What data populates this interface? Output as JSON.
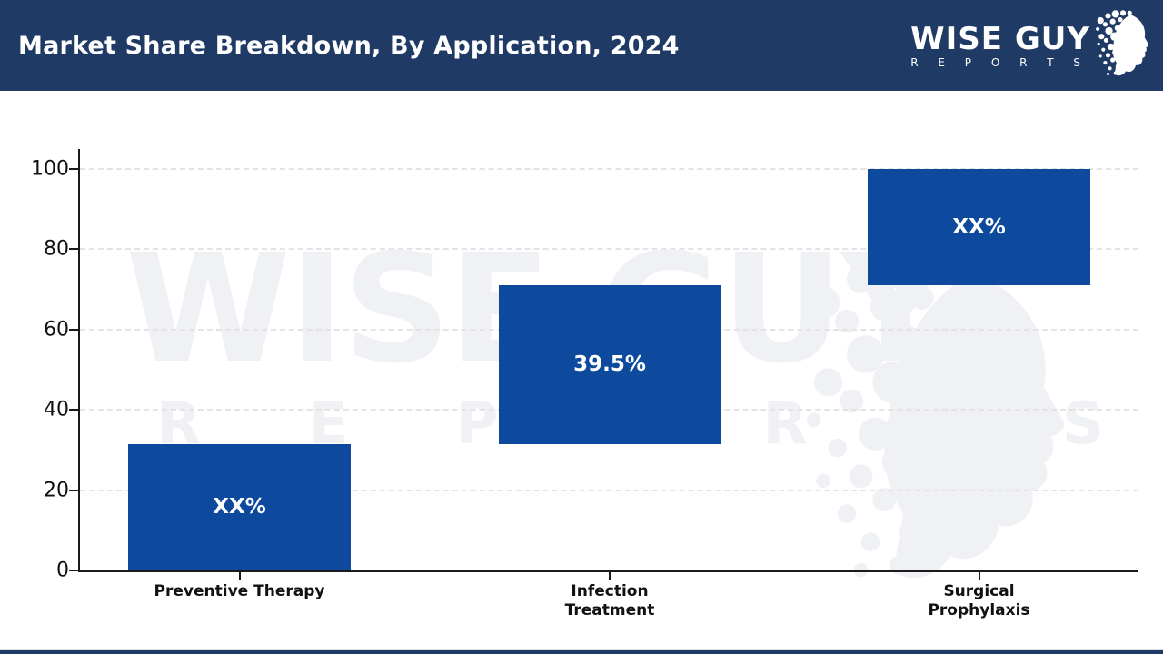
{
  "header": {
    "title": "Market Share Breakdown, By Application, 2024",
    "logo": {
      "line1": "WISE GUY",
      "line2": "R E P O R T S"
    }
  },
  "watermark": {
    "line1": "WISE GUY",
    "line2": "R E P O R T S"
  },
  "chart_data": {
    "type": "bar",
    "subtype": "floating-segment-breakdown",
    "title": "Market Share Breakdown, By Application, 2024",
    "categories": [
      "Preventive Therapy",
      "Infection\nTreatment",
      "Surgical\nProphylaxis"
    ],
    "segments": [
      {
        "category": "Preventive Therapy",
        "start": 0,
        "end": 31.5,
        "label": "XX%"
      },
      {
        "category": "Infection Treatment",
        "start": 31.5,
        "end": 71,
        "label": "39.5%"
      },
      {
        "category": "Surgical Prophylaxis",
        "start": 71,
        "end": 100,
        "label": "XX%"
      }
    ],
    "yticks": [
      0,
      20,
      40,
      60,
      80,
      100
    ],
    "ylim": [
      0,
      105
    ],
    "xlabel": "",
    "ylabel": "",
    "grid": "horizontal-dashed",
    "legend": "none",
    "bar_color": "#0d4a9e",
    "bar_label_color": "#ffffff"
  },
  "colors": {
    "header_bg": "#203a66",
    "bar": "#0d4a9e",
    "watermark": "#f0f1f4",
    "axis": "#1a1a1a",
    "grid": "#e3e3e3",
    "footer_bar": "#203a66"
  }
}
